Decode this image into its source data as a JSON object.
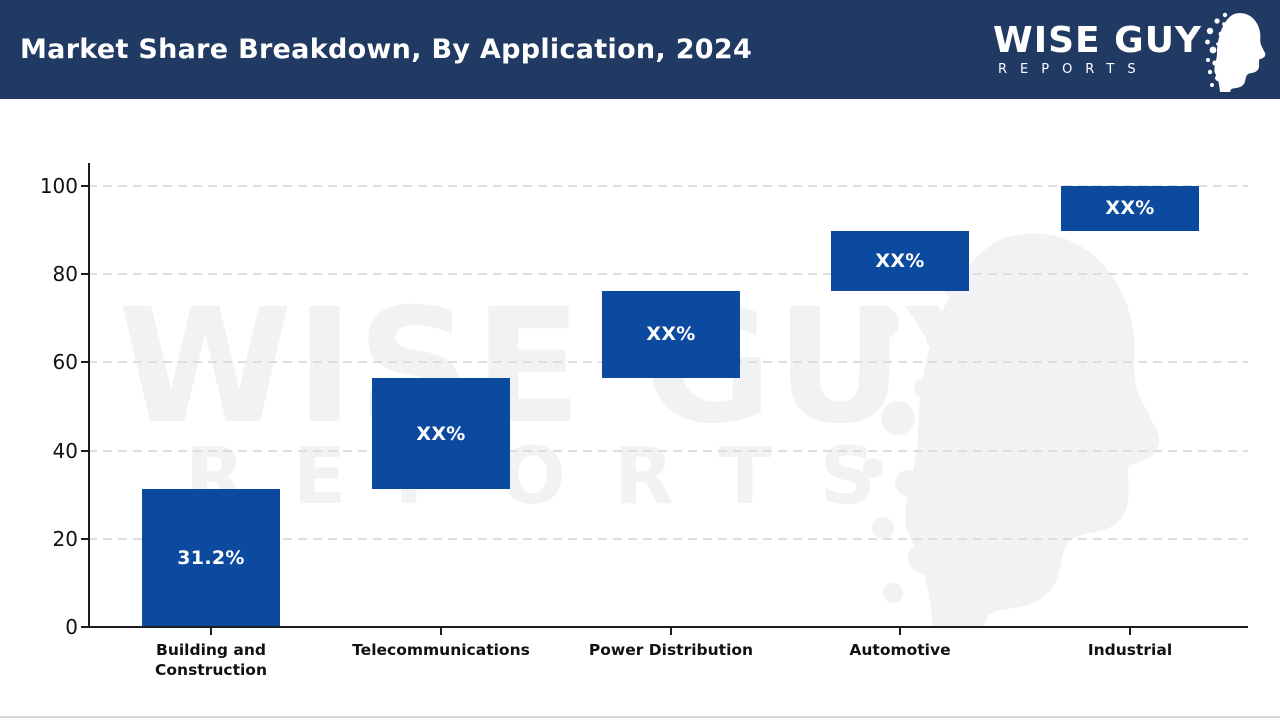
{
  "header": {
    "title": "Market Share Breakdown, By Application, 2024",
    "logo": {
      "line1": "WISE GUY",
      "line2": "REPORTS"
    }
  },
  "watermark": {
    "line1": "WISE GUY",
    "line2": "REPORTS"
  },
  "colors": {
    "header_bg": "#213a63",
    "bar": "#0b4a9e",
    "grid": "#dedede",
    "axis": "#1c1c1c",
    "bar_label_text": "#ffffff",
    "watermark": "#f2f2f4"
  },
  "chart_data": {
    "type": "bar",
    "variant": "waterfall",
    "title": "Market Share Breakdown, By Application, 2024",
    "categories": [
      "Building and Construction",
      "Telecommunications",
      "Power Distribution",
      "Automotive",
      "Industrial"
    ],
    "axis_labels": [
      "Building and\nConstruction",
      "Telecommunications",
      "Power Distribution",
      "Automotive",
      "Industrial"
    ],
    "segments": [
      {
        "category": "Building and Construction",
        "start": 0,
        "end": 31.2,
        "value_label": "31.2%"
      },
      {
        "category": "Telecommunications",
        "start": 31.2,
        "end": 56.5,
        "value_label": "XX%"
      },
      {
        "category": "Power Distribution",
        "start": 56.5,
        "end": 76.2,
        "value_label": "XX%"
      },
      {
        "category": "Automotive",
        "start": 76.2,
        "end": 89.8,
        "value_label": "XX%"
      },
      {
        "category": "Industrial",
        "start": 89.8,
        "end": 100,
        "value_label": "XX%"
      }
    ],
    "yticks": [
      0,
      20,
      40,
      60,
      80,
      100
    ],
    "ylim": [
      0,
      105
    ],
    "xlabel": "",
    "ylabel": "",
    "grid": "horizontal-dashed",
    "legend": "none"
  }
}
